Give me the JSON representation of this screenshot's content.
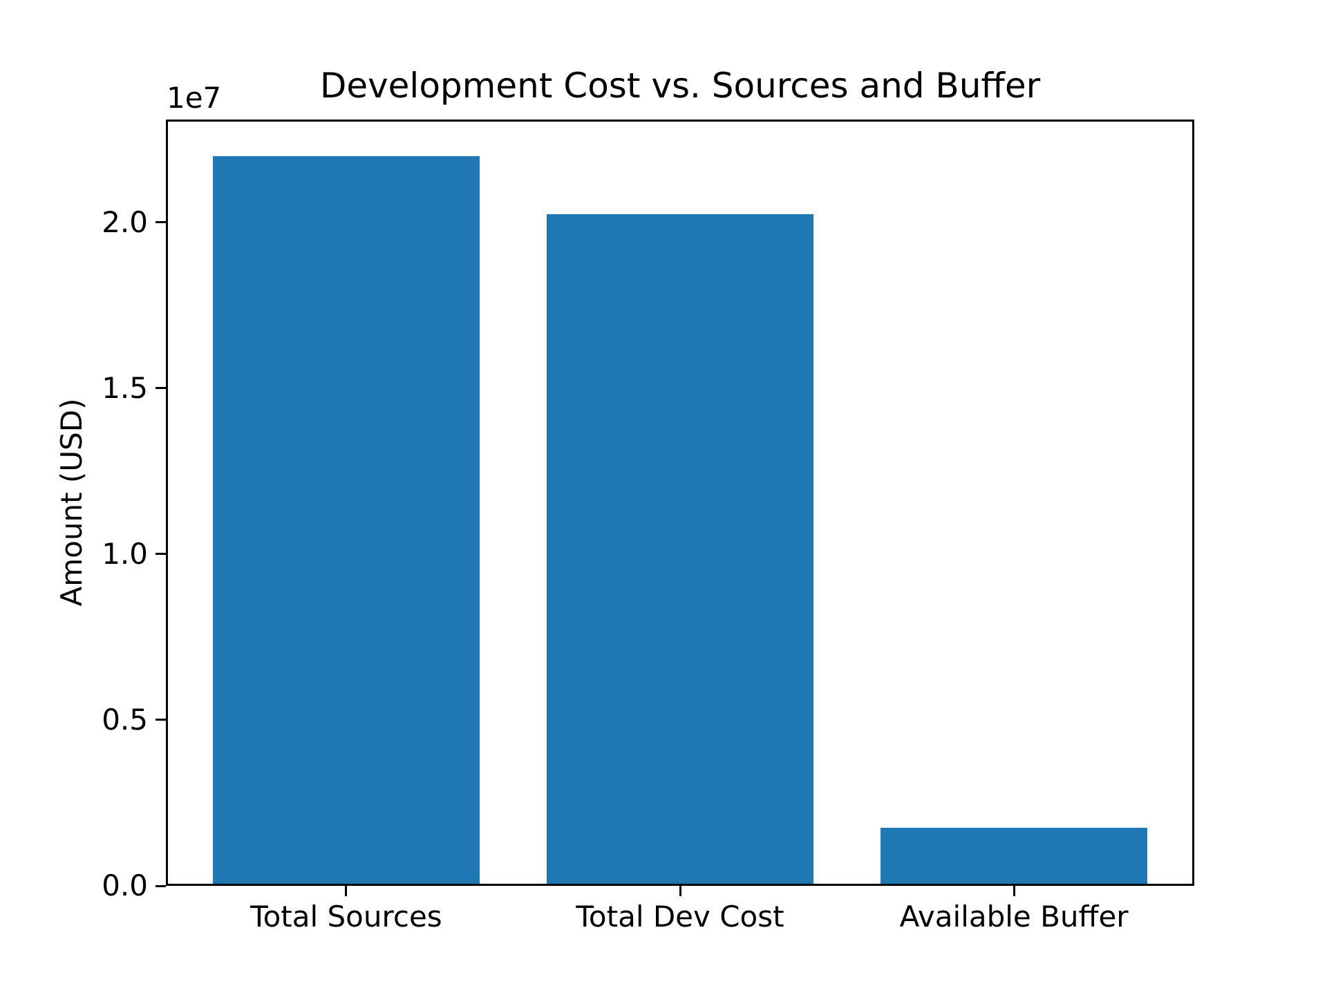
{
  "chart_data": {
    "type": "bar",
    "title": "Development Cost vs. Sources and Buffer",
    "xlabel": "",
    "ylabel": "Amount (USD)",
    "offset_text": "1e7",
    "categories": [
      "Total Sources",
      "Total Dev Cost",
      "Available Buffer"
    ],
    "values": [
      22000000,
      20250000,
      1750000
    ],
    "bar_color": "#1f77b4",
    "ylim": [
      0,
      23100000
    ],
    "yticks": [
      0,
      5000000,
      10000000,
      15000000,
      20000000
    ],
    "ytick_labels": [
      "0.0",
      "0.5",
      "1.0",
      "1.5",
      "2.0"
    ],
    "grid": false,
    "legend_position": "none"
  }
}
